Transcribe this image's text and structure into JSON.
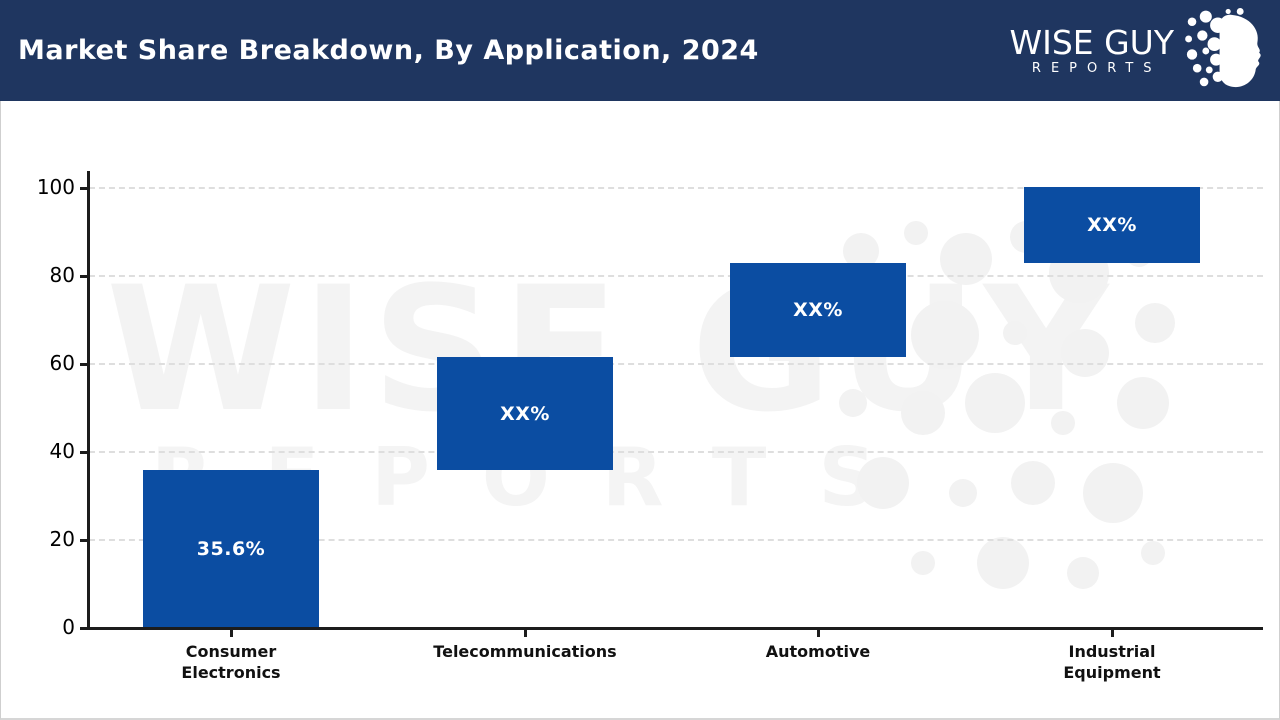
{
  "header": {
    "title": "Market Share Breakdown, By Application, 2024",
    "logo": {
      "line1": "WISE GUY",
      "line2": "REPORTS"
    }
  },
  "watermark": {
    "line1": "WISE GUY",
    "line2": "REPORTS"
  },
  "colors": {
    "header_bg": "#1f3660",
    "bar": "#0b4da2",
    "bar_label": "#ffffff",
    "grid": "#dedede",
    "axis": "#1c1c1c",
    "watermark": "#f3f3f3"
  },
  "chart_data": {
    "type": "bar",
    "subtype": "waterfall-stacked-segments",
    "title": "Market Share Breakdown, By Application, 2024",
    "xlabel": "",
    "ylabel": "",
    "ylim": [
      0,
      100
    ],
    "yticks": [
      0,
      20,
      40,
      60,
      80,
      100
    ],
    "grid": "horizontal-dashed",
    "legend": "none",
    "categories": [
      "Consumer Electronics",
      "Telecommunications",
      "Automotive",
      "Industrial Equipment"
    ],
    "category_lines": [
      [
        "Consumer",
        "Electronics"
      ],
      [
        "Telecommunications"
      ],
      [
        "Automotive"
      ],
      [
        "Industrial",
        "Equipment"
      ]
    ],
    "values": [
      35.6,
      25.7,
      21.4,
      17.3
    ],
    "segments": [
      {
        "category": "Consumer Electronics",
        "start": 0,
        "end": 35.6,
        "label": "35.6%"
      },
      {
        "category": "Telecommunications",
        "start": 35.6,
        "end": 61.3,
        "label": "XX%"
      },
      {
        "category": "Automotive",
        "start": 61.3,
        "end": 82.7,
        "label": "XX%"
      },
      {
        "category": "Industrial Equipment",
        "start": 82.7,
        "end": 100,
        "label": "XX%"
      }
    ]
  }
}
